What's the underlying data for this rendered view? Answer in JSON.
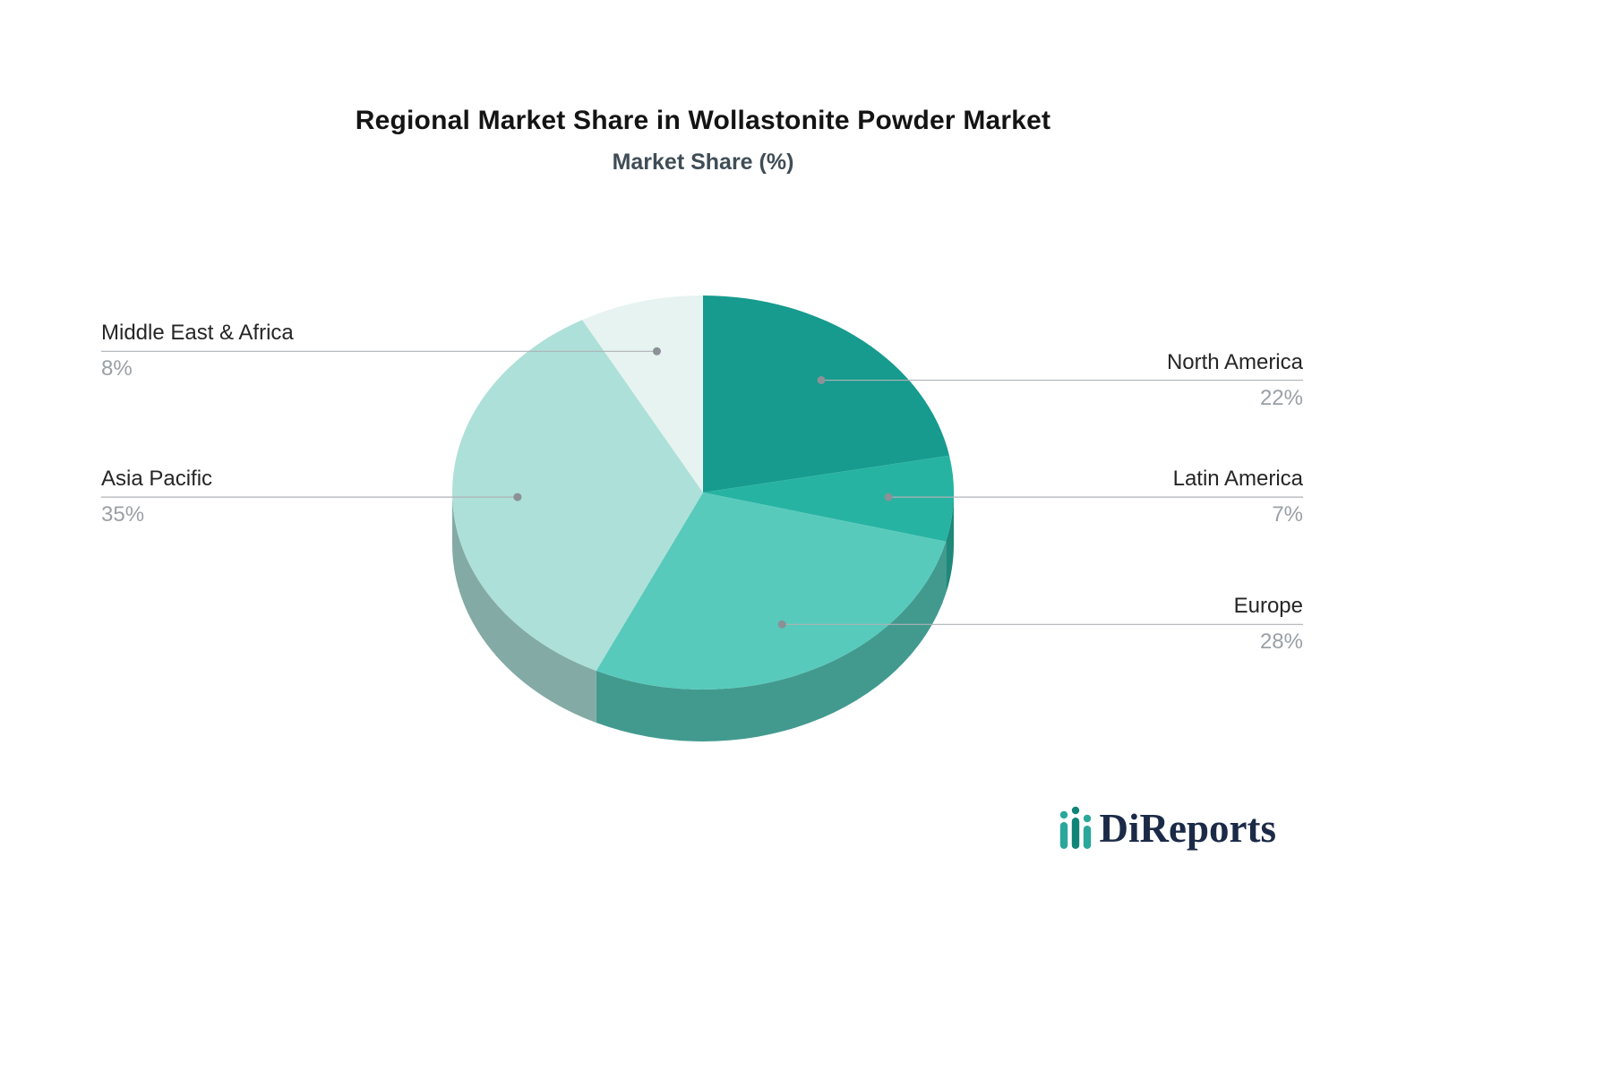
{
  "chart_data": {
    "type": "pie",
    "style": "3d-pie",
    "title": "Regional Market Share in Wollastonite Powder Market",
    "subtitle": "Market Share (%)",
    "unit": "%",
    "total": 100,
    "start_angle_deg": 0,
    "direction": "clockwise",
    "legend": "none",
    "label_style": "callout-lines-with-dots",
    "slices": [
      {
        "label": "North America",
        "value": 22,
        "value_text": "22%",
        "color": "#169b8e",
        "side": "right"
      },
      {
        "label": "Latin America",
        "value": 7,
        "value_text": "7%",
        "color": "#27b3a2",
        "side": "right"
      },
      {
        "label": "Europe",
        "value": 28,
        "value_text": "28%",
        "color": "#57cabc",
        "side": "right"
      },
      {
        "label": "Asia Pacific",
        "value": 35,
        "value_text": "35%",
        "color": "#ade0d8",
        "side": "left"
      },
      {
        "label": "Middle East & Africa",
        "value": 8,
        "value_text": "8%",
        "color": "#e6f3f0",
        "side": "left"
      }
    ],
    "callout_line_color": "#aeb2b6",
    "callout_dot_color": "#8b9196"
  },
  "logo": {
    "text": "DiReports",
    "icon": "bar-chart-icon",
    "icon_color": "#23a096",
    "text_color": "#1b2a47"
  }
}
